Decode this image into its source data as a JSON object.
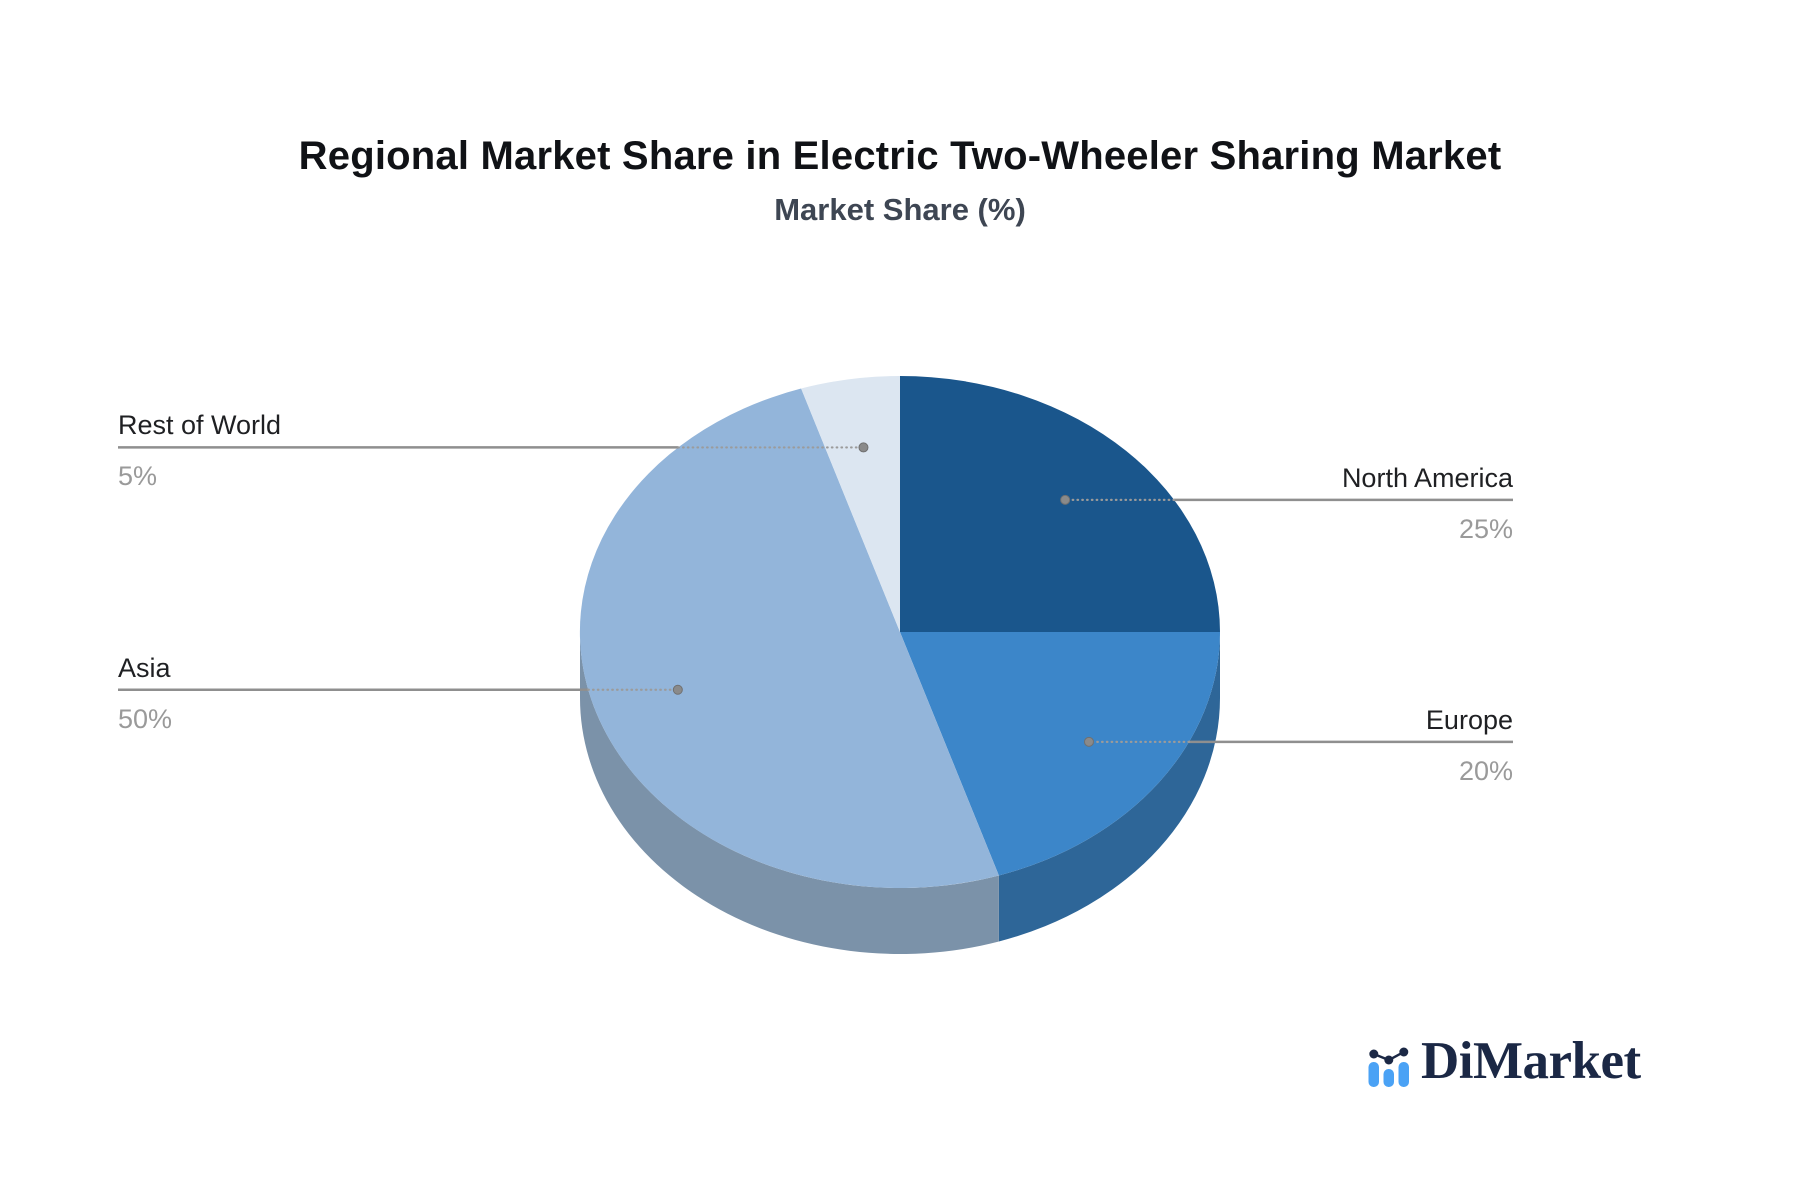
{
  "header": {
    "title": "Regional Market Share in Electric Two-Wheeler Sharing Market",
    "subtitle": "Market Share (%)"
  },
  "chart_data": {
    "type": "pie",
    "style": "pie-3d",
    "title": "Regional Market Share in Electric Two-Wheeler Sharing Market",
    "subtitle": "Market Share (%)",
    "unit": "%",
    "direction": "clockwise",
    "start_angle_deg": 0,
    "legend_position": "callout-labels",
    "slices": [
      {
        "label": "North America",
        "value": 25,
        "value_label": "25%",
        "color": "#1a568c",
        "side_color": null
      },
      {
        "label": "Europe",
        "value": 20,
        "value_label": "20%",
        "color": "#3c86c9",
        "side_color": "#2e6698"
      },
      {
        "label": "Asia",
        "value": 50,
        "value_label": "50%",
        "color": "#93b5da",
        "side_color": "#7b92a9"
      },
      {
        "label": "Rest of World",
        "value": 5,
        "value_label": "5%",
        "color": "#dce6f1",
        "side_color": null
      }
    ],
    "callout": {
      "line_color": "#8f8f8f",
      "dotted_color": "#9b9b9b",
      "dot_color": "#8a8a8a",
      "dot_ring_color": "#707070",
      "label_color": "#1f2023",
      "value_color": "#9a9a9a"
    },
    "colors": {
      "title": "#101216",
      "subtitle": "#3e4653",
      "background": "#ffffff"
    }
  },
  "brand": {
    "name": "DiMarket",
    "icon": "bar-line-chart-icon",
    "text_color": "#1b2845",
    "bar_color": "#4aa2f5"
  }
}
